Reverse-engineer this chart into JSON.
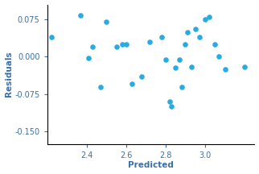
{
  "x": [
    2.22,
    2.37,
    2.41,
    2.43,
    2.47,
    2.5,
    2.55,
    2.58,
    2.6,
    2.63,
    2.68,
    2.72,
    2.78,
    2.8,
    2.82,
    2.83,
    2.85,
    2.87,
    2.88,
    2.9,
    2.91,
    2.93,
    2.95,
    2.97,
    3.0,
    3.02,
    3.05,
    3.07,
    3.1,
    3.2
  ],
  "y": [
    0.04,
    0.083,
    -0.003,
    0.02,
    -0.06,
    0.07,
    0.02,
    0.025,
    0.025,
    -0.055,
    -0.04,
    0.03,
    0.04,
    -0.005,
    -0.09,
    -0.1,
    -0.022,
    -0.005,
    -0.06,
    0.025,
    0.05,
    -0.02,
    0.055,
    0.04,
    0.075,
    0.08,
    0.025,
    0.0,
    -0.025,
    -0.02
  ],
  "dot_color": "#29ABE2",
  "dot_size": 14,
  "xlabel": "Predicted",
  "ylabel": "Residuals",
  "xlim": [
    2.2,
    3.25
  ],
  "ylim": [
    -0.175,
    0.105
  ],
  "xticks": [
    2.4,
    2.6,
    2.8,
    3.0
  ],
  "yticks": [
    -0.15,
    -0.075,
    0.0,
    0.075
  ],
  "label_color": "#3B6FA0",
  "tick_label_color": "#3B6FA0",
  "spine_color": "#000000",
  "bg_color": "#ffffff"
}
